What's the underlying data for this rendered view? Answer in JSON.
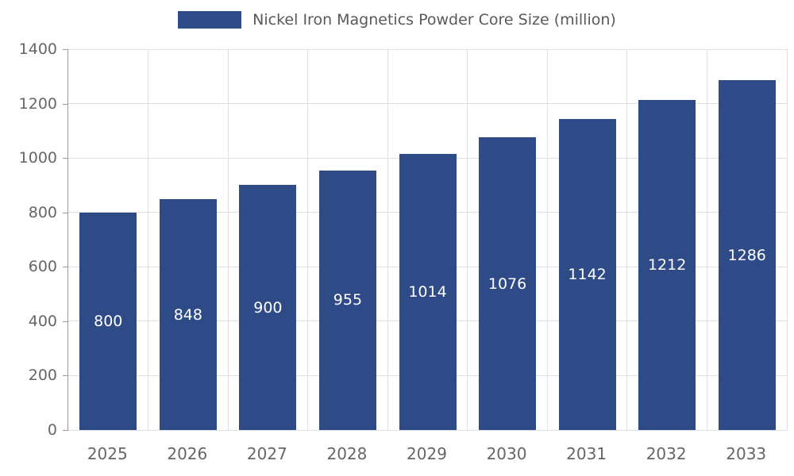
{
  "chart_data": {
    "type": "bar",
    "title": "Nickel Iron Magnetics Powder Core Size (million)",
    "categories": [
      "2025",
      "2026",
      "2027",
      "2028",
      "2029",
      "2030",
      "2031",
      "2032",
      "2033"
    ],
    "values": [
      800,
      848,
      900,
      955,
      1014,
      1076,
      1142,
      1212,
      1286
    ],
    "xlabel": "",
    "ylabel": "",
    "ylim": [
      0,
      1400
    ],
    "ytick_step": 200,
    "ytick_labels": [
      "0",
      "200",
      "400",
      "600",
      "800",
      "1000",
      "1200",
      "1400"
    ],
    "grid": true,
    "legend_position": "top",
    "value_labels_inside_bars": true
  },
  "colors": {
    "bar": "#2e4a87",
    "bar_label": "#ffffff",
    "axis": "#9b9b9b",
    "grid": "#e0e0e0",
    "tick_text": "#666666",
    "legend_text": "#595959"
  }
}
